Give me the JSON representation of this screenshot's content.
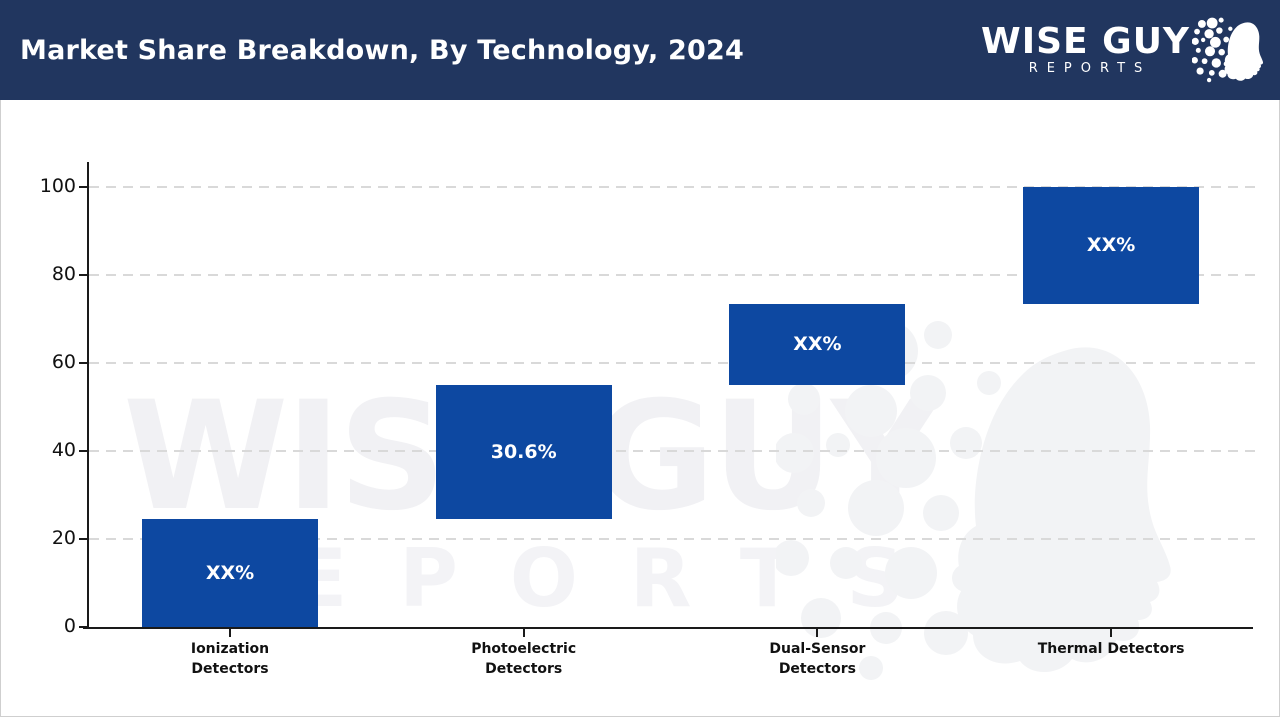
{
  "header": {
    "title": "Market Share Breakdown, By Technology, 2024",
    "bg_color": "#21365F",
    "logo": {
      "line1": "WISE GUY",
      "line2": "REPORTS"
    }
  },
  "watermark": {
    "line1": "WISE GUY",
    "line2": "REPORTS"
  },
  "chart_data": {
    "type": "bar",
    "subtype": "waterfall-stacked-percentage",
    "title": "Market Share Breakdown, By Technology, 2024",
    "xlabel": "",
    "ylabel": "",
    "categories": [
      "Ionization\nDetectors",
      "Photoelectric\nDetectors",
      "Dual-Sensor\nDetectors",
      "Thermal Detectors"
    ],
    "segments": [
      {
        "category": "Ionization Detectors",
        "start": 0,
        "end": 24.5,
        "value": 24.5,
        "display_label": "XX%"
      },
      {
        "category": "Photoelectric Detectors",
        "start": 24.5,
        "end": 55.1,
        "value": 30.6,
        "display_label": "30.6%"
      },
      {
        "category": "Dual-Sensor Detectors",
        "start": 55.1,
        "end": 73.5,
        "value": 18.4,
        "display_label": "XX%"
      },
      {
        "category": "Thermal Detectors",
        "start": 73.5,
        "end": 100,
        "value": 26.5,
        "display_label": "XX%"
      }
    ],
    "yticks": [
      0,
      20,
      40,
      60,
      80,
      100
    ],
    "ylim": [
      0,
      106
    ],
    "bar_color": "#0D48A1",
    "grid": "horizontal-dashed",
    "grid_color": "#D9D9D9",
    "legend": "none"
  }
}
